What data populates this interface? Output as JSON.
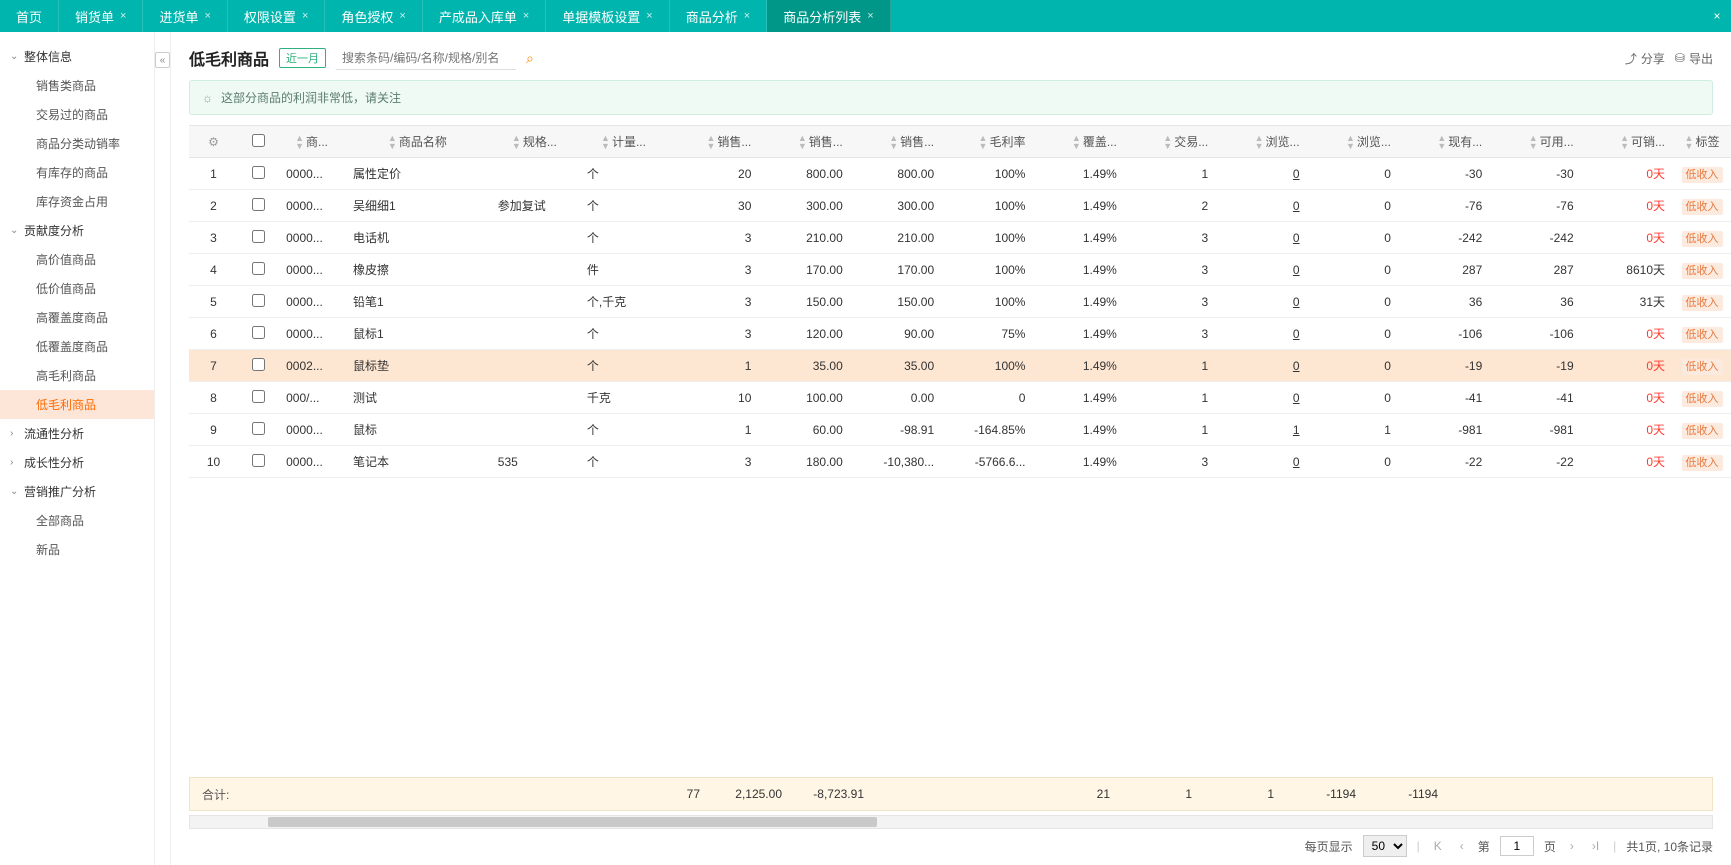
{
  "tabs": [
    {
      "label": "首页",
      "closable": false
    },
    {
      "label": "销货单",
      "closable": true
    },
    {
      "label": "进货单",
      "closable": true
    },
    {
      "label": "权限设置",
      "closable": true
    },
    {
      "label": "角色授权",
      "closable": true
    },
    {
      "label": "产成品入库单",
      "closable": true
    },
    {
      "label": "单据模板设置",
      "closable": true
    },
    {
      "label": "商品分析",
      "closable": true
    },
    {
      "label": "商品分析列表",
      "closable": true,
      "active": true
    }
  ],
  "sidebar": [
    {
      "type": "group",
      "label": "整体信息",
      "expanded": true,
      "chev": "⌄"
    },
    {
      "type": "item",
      "label": "销售类商品"
    },
    {
      "type": "item",
      "label": "交易过的商品"
    },
    {
      "type": "item",
      "label": "商品分类动销率"
    },
    {
      "type": "item",
      "label": "有库存的商品"
    },
    {
      "type": "item",
      "label": "库存资金占用"
    },
    {
      "type": "group",
      "label": "贡献度分析",
      "expanded": true,
      "chev": "⌄"
    },
    {
      "type": "item",
      "label": "高价值商品"
    },
    {
      "type": "item",
      "label": "低价值商品"
    },
    {
      "type": "item",
      "label": "高覆盖度商品"
    },
    {
      "type": "item",
      "label": "低覆盖度商品"
    },
    {
      "type": "item",
      "label": "高毛利商品"
    },
    {
      "type": "item",
      "label": "低毛利商品",
      "active": true
    },
    {
      "type": "group",
      "label": "流通性分析",
      "expanded": false,
      "chev": "›"
    },
    {
      "type": "group",
      "label": "成长性分析",
      "expanded": false,
      "chev": "›"
    },
    {
      "type": "group",
      "label": "营销推广分析",
      "expanded": true,
      "chev": "⌄"
    },
    {
      "type": "item",
      "label": "全部商品"
    },
    {
      "type": "item",
      "label": "新品"
    }
  ],
  "page": {
    "title": "低毛利商品",
    "period_badge": "近一月",
    "search_placeholder": "搜索条码/编码/名称/规格/别名",
    "share_label": "分享",
    "export_label": "导出",
    "notice": "这部分商品的利润非常低，请关注"
  },
  "table": {
    "columns": [
      "商...",
      "商品名称",
      "规格...",
      "计量...",
      "销售...",
      "销售...",
      "销售...",
      "毛利率",
      "覆盖...",
      "交易...",
      "浏览...",
      "浏览...",
      "现有...",
      "可用...",
      "可销...",
      "标签"
    ],
    "rows": [
      {
        "idx": "1",
        "code": "0000...",
        "name": "属性定价",
        "spec": "",
        "unit": "个",
        "c5": "20",
        "c6": "800.00",
        "c7": "800.00",
        "rate": "100%",
        "cover": "1.49%",
        "trade": "1",
        "view1": "0",
        "view1_u": true,
        "view2": "0",
        "stock": "-30",
        "avail": "-30",
        "sell": "0天",
        "sell_red": true,
        "tag": "低收入"
      },
      {
        "idx": "2",
        "code": "0000...",
        "name": "吴细细1",
        "spec": "参加复试",
        "unit": "个",
        "c5": "30",
        "c6": "300.00",
        "c7": "300.00",
        "rate": "100%",
        "cover": "1.49%",
        "trade": "2",
        "view1": "0",
        "view1_u": true,
        "view2": "0",
        "stock": "-76",
        "avail": "-76",
        "sell": "0天",
        "sell_red": true,
        "tag": "低收入"
      },
      {
        "idx": "3",
        "code": "0000...",
        "name": "电话机",
        "spec": "",
        "unit": "个",
        "c5": "3",
        "c6": "210.00",
        "c7": "210.00",
        "rate": "100%",
        "cover": "1.49%",
        "trade": "3",
        "view1": "0",
        "view1_u": true,
        "view2": "0",
        "stock": "-242",
        "avail": "-242",
        "sell": "0天",
        "sell_red": true,
        "tag": "低收入"
      },
      {
        "idx": "4",
        "code": "0000...",
        "name": "橡皮擦",
        "spec": "",
        "unit": "件",
        "c5": "3",
        "c6": "170.00",
        "c7": "170.00",
        "rate": "100%",
        "cover": "1.49%",
        "trade": "3",
        "view1": "0",
        "view1_u": true,
        "view2": "0",
        "stock": "287",
        "avail": "287",
        "sell": "8610天",
        "sell_red": false,
        "tag": "低收入"
      },
      {
        "idx": "5",
        "code": "0000...",
        "name": "铅笔1",
        "spec": "",
        "unit": "个,千克",
        "c5": "3",
        "c6": "150.00",
        "c7": "150.00",
        "rate": "100%",
        "cover": "1.49%",
        "trade": "3",
        "view1": "0",
        "view1_u": true,
        "view2": "0",
        "stock": "36",
        "avail": "36",
        "sell": "31天",
        "sell_red": false,
        "tag": "低收入"
      },
      {
        "idx": "6",
        "code": "0000...",
        "name": "鼠标1",
        "spec": "",
        "unit": "个",
        "c5": "3",
        "c6": "120.00",
        "c7": "90.00",
        "rate": "75%",
        "cover": "1.49%",
        "trade": "3",
        "view1": "0",
        "view1_u": true,
        "view2": "0",
        "stock": "-106",
        "avail": "-106",
        "sell": "0天",
        "sell_red": true,
        "tag": "低收入"
      },
      {
        "idx": "7",
        "code": "0002...",
        "name": "鼠标垫",
        "spec": "",
        "unit": "个",
        "c5": "1",
        "c6": "35.00",
        "c7": "35.00",
        "rate": "100%",
        "cover": "1.49%",
        "trade": "1",
        "view1": "0",
        "view1_u": true,
        "view2": "0",
        "stock": "-19",
        "avail": "-19",
        "sell": "0天",
        "sell_red": true,
        "tag": "低收入",
        "highlight": true
      },
      {
        "idx": "8",
        "code": "000/...",
        "name": "测试",
        "spec": "",
        "unit": "千克",
        "c5": "10",
        "c6": "100.00",
        "c7": "0.00",
        "rate": "0",
        "cover": "1.49%",
        "trade": "1",
        "view1": "0",
        "view1_u": true,
        "view2": "0",
        "stock": "-41",
        "avail": "-41",
        "sell": "0天",
        "sell_red": true,
        "tag": "低收入"
      },
      {
        "idx": "9",
        "code": "0000...",
        "name": "鼠标",
        "spec": "",
        "unit": "个",
        "c5": "1",
        "c6": "60.00",
        "c7": "-98.91",
        "rate": "-164.85%",
        "cover": "1.49%",
        "trade": "1",
        "view1": "1",
        "view1_u": true,
        "view2": "1",
        "stock": "-981",
        "avail": "-981",
        "sell": "0天",
        "sell_red": true,
        "tag": "低收入"
      },
      {
        "idx": "10",
        "code": "0000...",
        "name": "笔记本",
        "spec": "535",
        "unit": "个",
        "c5": "3",
        "c6": "180.00",
        "c7": "-10,380...",
        "rate": "-5766.6...",
        "cover": "1.49%",
        "trade": "3",
        "view1": "0",
        "view1_u": true,
        "view2": "0",
        "stock": "-22",
        "avail": "-22",
        "sell": "0天",
        "sell_red": true,
        "tag": "低收入"
      }
    ],
    "totals": {
      "label": "合计:",
      "c5": "77",
      "c6": "2,125.00",
      "c7": "-8,723.91",
      "trade": "21",
      "view1": "1",
      "view2": "1",
      "stock": "-1194",
      "avail": "-1194"
    }
  },
  "pager": {
    "per_page_label": "每页显示",
    "per_page_value": "50",
    "page_label_prefix": "第",
    "page_value": "1",
    "page_label_suffix": "页",
    "summary": "共1页, 10条记录"
  }
}
